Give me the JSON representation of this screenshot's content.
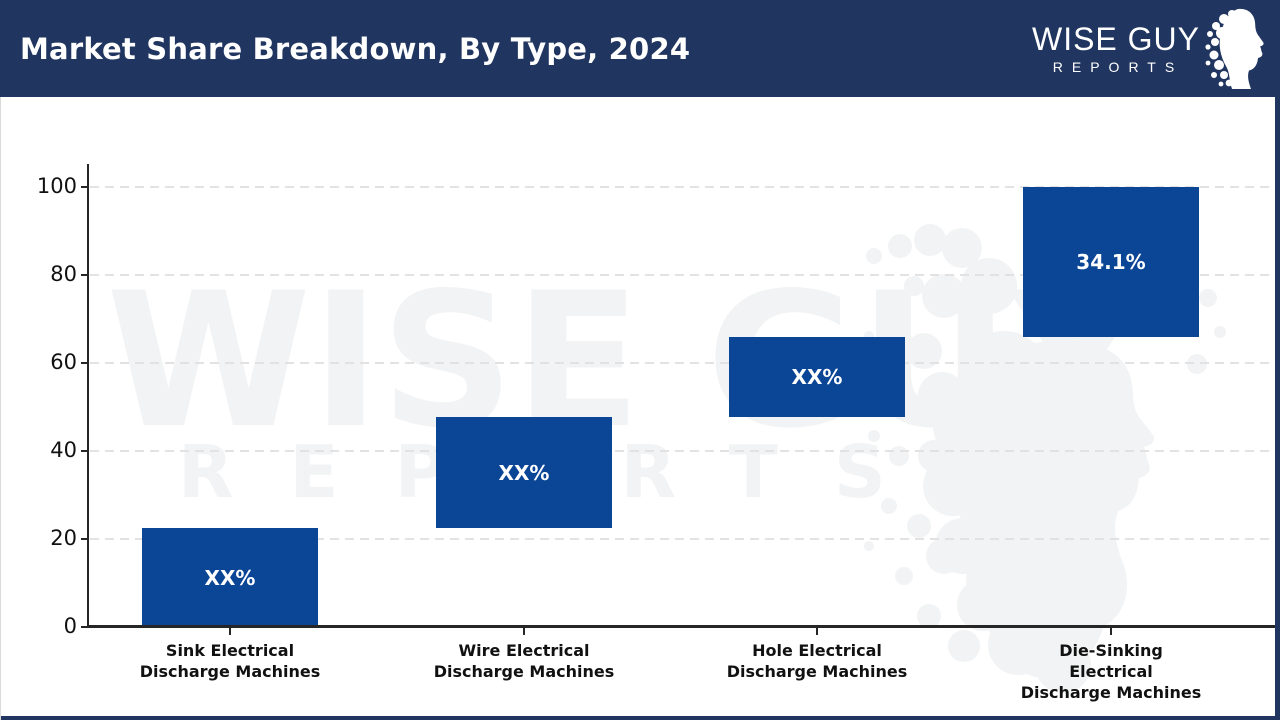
{
  "header": {
    "title": "Market Share Breakdown, By Type, 2024",
    "logo": {
      "wordmark": "WISE GUY",
      "subtext": "REPORTS"
    }
  },
  "watermark": {
    "wordmark": "WISE GUY",
    "subtext": "REPORTS"
  },
  "chart_data": {
    "type": "bar",
    "subtype": "stacked-waterfall-segments",
    "title": "Market Share Breakdown, By Type, 2024",
    "categories": [
      "Sink Electrical Discharge Machines",
      "Wire Electrical Discharge Machines",
      "Hole Electrical Discharge Machines",
      "Die-Sinking Electrical Discharge Machines"
    ],
    "categories_display": [
      "Sink Electrical\nDischarge Machines",
      "Wire Electrical\nDischarge Machines",
      "Hole Electrical\nDischarge Machines",
      "Die-Sinking\nElectrical\nDischarge Machines"
    ],
    "segments": [
      {
        "category": "Sink Electrical Discharge Machines",
        "start": 0,
        "end": 22.5,
        "value": 22.5,
        "label": "XX%"
      },
      {
        "category": "Wire Electrical Discharge Machines",
        "start": 22.5,
        "end": 47.7,
        "value": 25.2,
        "label": "XX%"
      },
      {
        "category": "Hole Electrical Discharge Machines",
        "start": 47.7,
        "end": 65.9,
        "value": 18.2,
        "label": "XX%"
      },
      {
        "category": "Die-Sinking Electrical Discharge Machines",
        "start": 65.9,
        "end": 100,
        "value": 34.1,
        "label": "34.1%"
      }
    ],
    "xlabel": "",
    "ylabel": "",
    "ylim": [
      0,
      100
    ],
    "yticks": [
      0,
      20,
      40,
      60,
      80,
      100
    ],
    "grid": "horizontal-dashed",
    "legend": "none"
  },
  "colors": {
    "header_bg": "#20355f",
    "bar": "#0b4596",
    "bar_label": "#ffffff",
    "grid": "#e2e2e2",
    "axis": "#262626",
    "watermark": "#f2f3f4"
  }
}
